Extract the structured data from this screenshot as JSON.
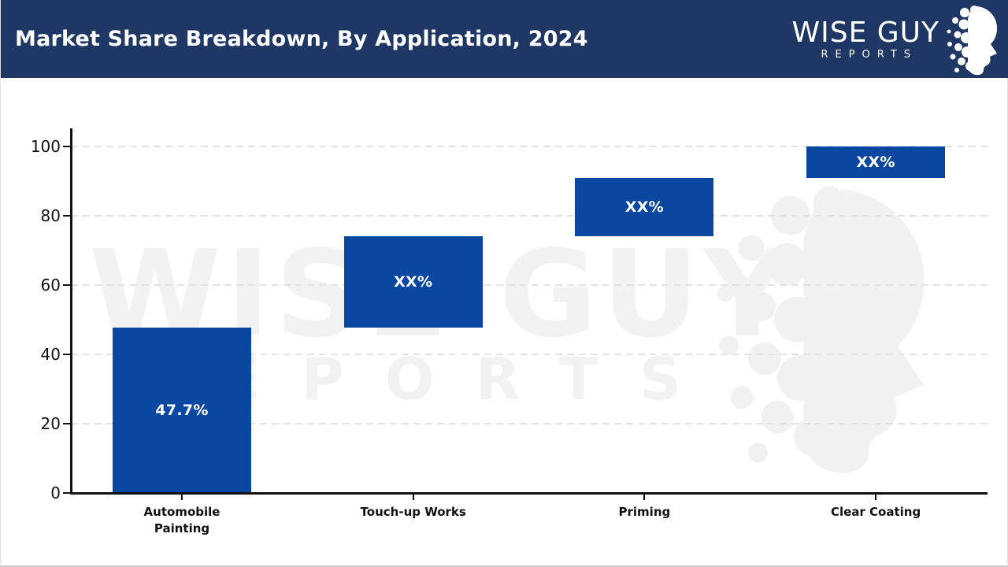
{
  "header": {
    "title": "Market Share Breakdown, By Application, 2024",
    "logo": {
      "line1": "WISE GUY",
      "line2": "REPORTS"
    }
  },
  "watermark": {
    "line1": "WISE GUY",
    "line2": "REPORTS"
  },
  "chart_data": {
    "type": "bar",
    "subtype": "waterfall",
    "title": "Market Share Breakdown, By Application, 2024",
    "categories": [
      "Automobile Painting",
      "Touch-up Works",
      "Priming",
      "Clear Coating"
    ],
    "category_display": [
      "Automobile\nPainting",
      "Touch-up Works",
      "Priming",
      "Clear Coating"
    ],
    "bars": [
      {
        "category": "Automobile Painting",
        "start": 0,
        "end": 47.7,
        "label": "47.7%"
      },
      {
        "category": "Touch-up Works",
        "start": 47.7,
        "end": 74,
        "label": "XX%"
      },
      {
        "category": "Priming",
        "start": 74,
        "end": 91,
        "label": "XX%"
      },
      {
        "category": "Clear Coating",
        "start": 91,
        "end": 100,
        "label": "XX%"
      }
    ],
    "y_ticks": [
      0,
      20,
      40,
      60,
      80,
      100
    ],
    "ylim": [
      0,
      105
    ],
    "xlabel": "",
    "ylabel": "",
    "grid": "horizontal-dashed",
    "legend": "none",
    "bar_color": "#0a47a1",
    "bar_label_color": "#ffffff",
    "header_color": "#1f3765"
  }
}
